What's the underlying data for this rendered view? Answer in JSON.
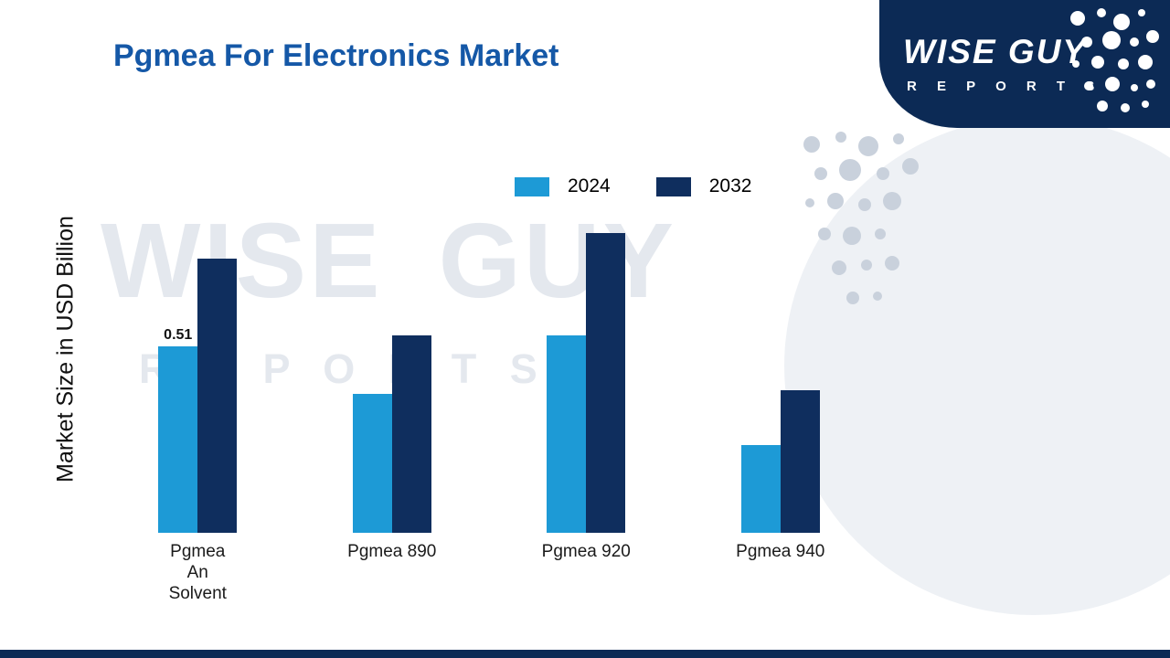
{
  "page": {
    "accent_color": "#1558a7",
    "footer_bar_color": "#0c2a55",
    "background": "#ffffff"
  },
  "brand": {
    "name": "WISE GUY",
    "subtitle": "R E P O R T S",
    "background": "#0c2a55",
    "text_color": "#ffffff"
  },
  "watermark": {
    "title": "WISE GUY",
    "subtitle": "R E P O R T S"
  },
  "chart_data": {
    "type": "bar",
    "title": "Pgmea For Electronics Market",
    "xlabel": "",
    "ylabel": "Market Size in USD Billion",
    "units": "USD Billion",
    "categories": [
      "Pgmea\nAn\nSolvent",
      "Pgmea 890",
      "Pgmea 920",
      "Pgmea 940"
    ],
    "series": [
      {
        "name": "2024",
        "color": "#1d9ad6",
        "values": [
          0.51,
          0.38,
          0.54,
          0.24
        ],
        "labels": [
          "0.51",
          "",
          "",
          ""
        ]
      },
      {
        "name": "2032",
        "color": "#0f2e5e",
        "values": [
          0.75,
          0.54,
          0.82,
          0.39
        ],
        "labels": [
          "",
          "",
          "",
          ""
        ]
      }
    ],
    "ylim": [
      0,
      0.9
    ],
    "grid": false,
    "axes_visible": false,
    "legend_position": "top"
  }
}
